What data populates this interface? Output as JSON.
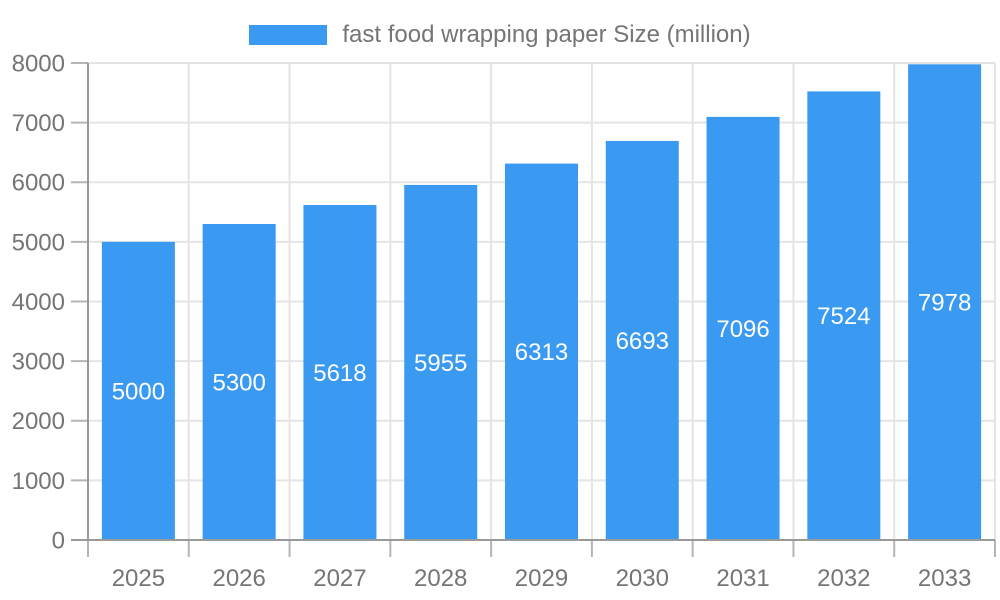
{
  "chart_data": {
    "type": "bar",
    "title": "fast food wrapping paper Size (million)",
    "categories": [
      "2025",
      "2026",
      "2027",
      "2028",
      "2029",
      "2030",
      "2031",
      "2032",
      "2033"
    ],
    "values": [
      5000,
      5300,
      5618,
      5955,
      6313,
      6693,
      7096,
      7524,
      7978
    ],
    "series": [
      {
        "name": "fast food wrapping paper Size (million)",
        "values": [
          5000,
          5300,
          5618,
          5955,
          6313,
          6693,
          7096,
          7524,
          7978
        ]
      }
    ],
    "xlabel": "",
    "ylabel": "",
    "ylim": [
      0,
      8000
    ],
    "yticks": [
      0,
      1000,
      2000,
      3000,
      4000,
      5000,
      6000,
      7000,
      8000
    ],
    "grid": true,
    "legend_position": "top",
    "bar_label_position": "center",
    "colors": {
      "bar": "#3a99f0",
      "bar_label": "#ffffff",
      "axis_line": "#999999",
      "tick_mark": "#b5b5b5",
      "grid_line": "#e4e4e4",
      "tick_label": "#757575",
      "legend_text": "#757575",
      "background": "#ffffff"
    }
  }
}
